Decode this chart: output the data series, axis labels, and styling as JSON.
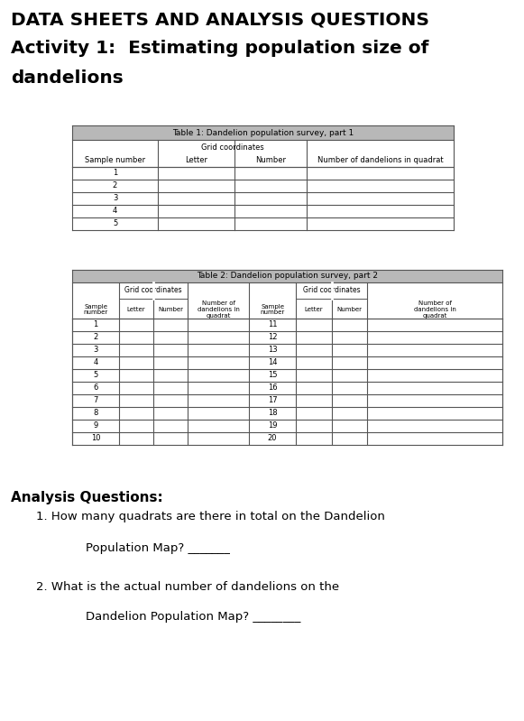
{
  "title_line1": "DATA SHEETS AND ANALYSIS QUESTIONS",
  "title_line2": "Activity 1:  Estimating population size of\ndandelions",
  "table1_title": "Table 1: Dandelion population survey, part 1",
  "table1_subheader": "Grid coordinates",
  "table1_col_headers": [
    "Sample number",
    "Letter",
    "Number",
    "Number of dandelions in quadrat"
  ],
  "table1_rows": [
    "1",
    "2",
    "3",
    "4",
    "5"
  ],
  "table2_title": "Table 2: Dandelion population survey, part 2",
  "table2_left_rows": [
    "1",
    "2",
    "3",
    "4",
    "5",
    "6",
    "7",
    "8",
    "9",
    "10"
  ],
  "table2_right_rows": [
    "11",
    "12",
    "13",
    "14",
    "15",
    "16",
    "17",
    "18",
    "19",
    "20"
  ],
  "analysis_title": "Analysis Questions:",
  "q1_line1": "1. How many quadrats are there in total on the Dandelion",
  "q1_line2": "Population Map? _______",
  "q2_line1": "2. What is the actual number of dandelions on the",
  "q2_line2": "Dandelion Population Map? ________",
  "bg_color": "#ffffff",
  "header_gray": "#b8b8b8",
  "table_border": "#555555",
  "text_color": "#000000",
  "title1_fontsize": 14.5,
  "title2_fontsize": 14.5,
  "table_title_fontsize": 6.5,
  "header_fontsize": 6.0,
  "cell_fontsize": 6.0,
  "analysis_title_fontsize": 11,
  "analysis_text_fontsize": 9.5
}
